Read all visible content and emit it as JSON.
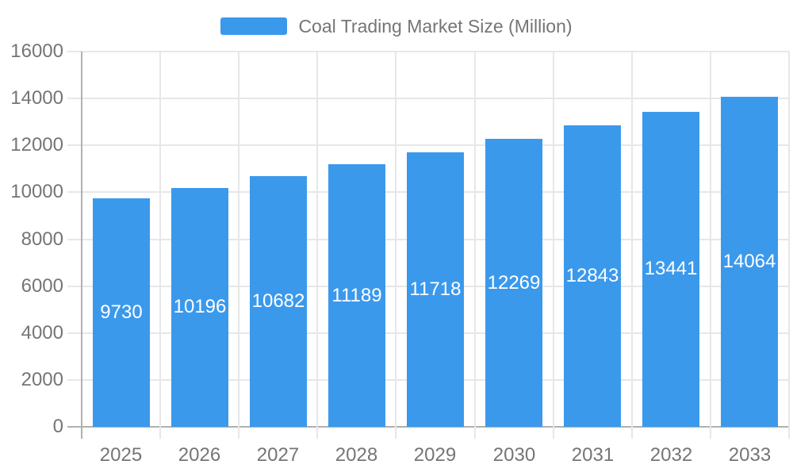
{
  "legend": {
    "label": "Coal Trading Market Size (Million)"
  },
  "chart_data": {
    "type": "bar",
    "title": "Coal Trading Market Size (Million)",
    "categories": [
      "2025",
      "2026",
      "2027",
      "2028",
      "2029",
      "2030",
      "2031",
      "2032",
      "2033"
    ],
    "series": [
      {
        "name": "Coal Trading Market Size (Million)",
        "values": [
          9730,
          10196,
          10682,
          11189,
          11718,
          12269,
          12843,
          13441,
          14064
        ]
      }
    ],
    "value_labels_shown": [
      9730,
      10196,
      10682,
      11189,
      11718,
      12269,
      12843,
      13441,
      14064
    ],
    "xlabel": "",
    "ylabel": "",
    "ylim": [
      0,
      16000
    ],
    "ytick_step": 2000,
    "ytick_labels": [
      "0",
      "2000",
      "4000",
      "6000",
      "8000",
      "10000",
      "12000",
      "14000",
      "16000"
    ],
    "grid": true,
    "legend_position": "top-center",
    "colors": {
      "bar": "#3B99EC",
      "gridline": "#e7e7e7",
      "axis_line": "#b0b0b0",
      "tick_text": "#757575",
      "value_text": "#ffffff",
      "background": "#ffffff"
    }
  }
}
